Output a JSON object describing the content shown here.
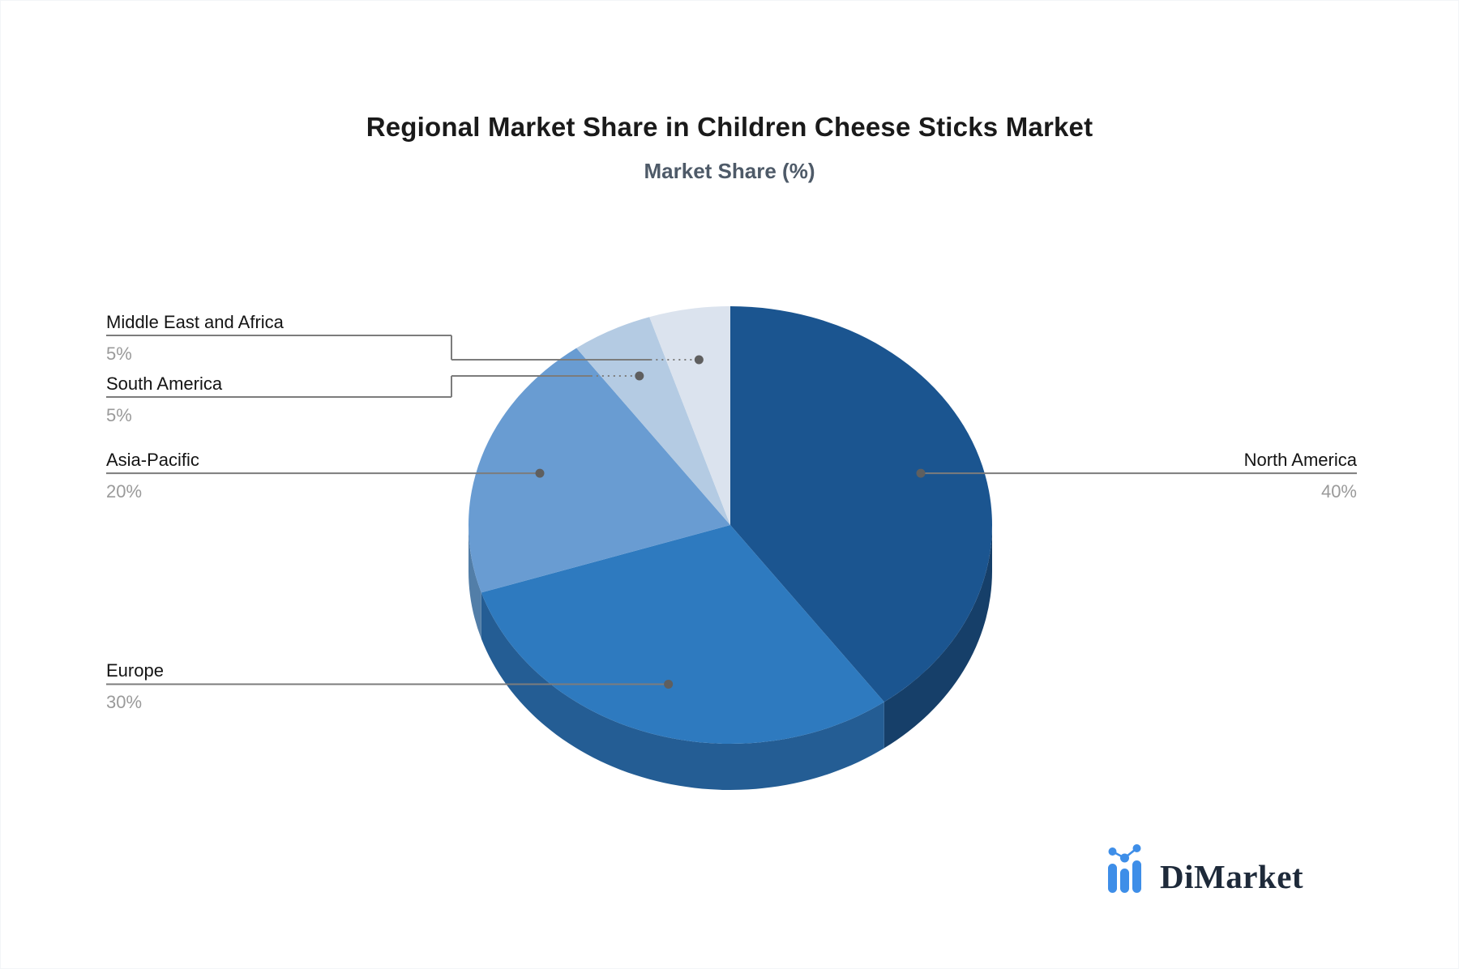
{
  "title": "Regional Market Share in Children Cheese Sticks Market",
  "subtitle": "Market Share (%)",
  "slices": [
    {
      "label": "North America",
      "value": "40%"
    },
    {
      "label": "Europe",
      "value": "30%"
    },
    {
      "label": "Asia-Pacific",
      "value": "20%"
    },
    {
      "label": "South America",
      "value": "5%"
    },
    {
      "label": "Middle East and Africa",
      "value": "5%"
    }
  ],
  "chart_data": {
    "type": "pie",
    "title": "Regional Market Share in Children Cheese Sticks Market",
    "subtitle": "Market Share (%)",
    "unit": "%",
    "categories": [
      "North America",
      "Europe",
      "Asia-Pacific",
      "South America",
      "Middle East and Africa"
    ],
    "values": [
      40,
      30,
      20,
      5,
      5
    ],
    "colors": [
      "#1b5590",
      "#2e7abf",
      "#699cd2",
      "#b4cbe3",
      "#dbe3ee"
    ],
    "side_colors": [
      "#163f69",
      "#245d94",
      "#527ea8",
      "#8aa6c6",
      "#aebdd0"
    ],
    "start_angle": "12-o-clock",
    "direction": "clockwise",
    "style": "3d",
    "legend_position": "callout-labels",
    "label_color": "#141414",
    "value_color": "#9a9a9a",
    "leader_line_color": "#7c7c7c"
  },
  "logo": {
    "text": "DiMarket",
    "icon": "bar-chart-with-trend-line",
    "icon_color": "#3e8ee8",
    "text_color": "#1e2a3a"
  }
}
